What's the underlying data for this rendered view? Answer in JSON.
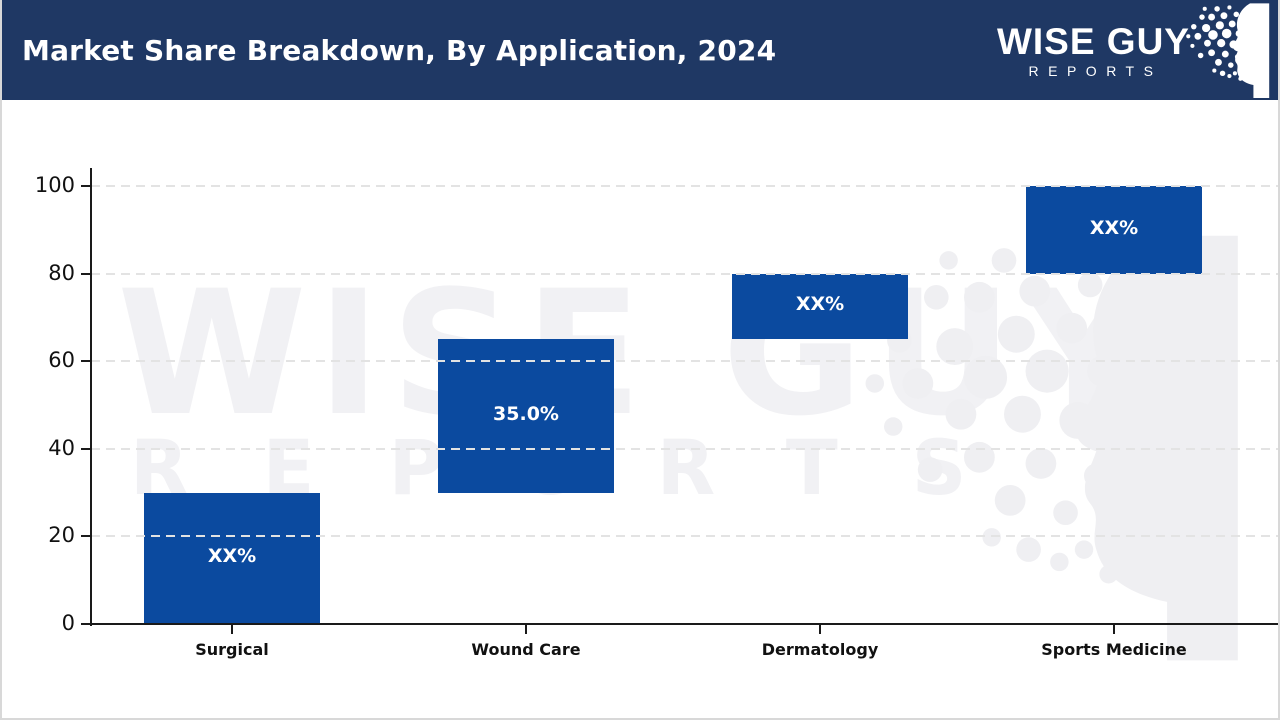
{
  "header": {
    "title": "Market Share Breakdown, By Application, 2024",
    "logo": {
      "line1": "WISE GUY",
      "line2": "REPORTS"
    }
  },
  "watermark": {
    "line1": "WISE GUY",
    "line2": "REPORTS"
  },
  "chart_data": {
    "type": "bar",
    "subtype": "waterfall",
    "title": "Market Share Breakdown, By Application, 2024",
    "categories": [
      "Surgical",
      "Wound Care",
      "Dermatology",
      "Sports Medicine"
    ],
    "segments": [
      {
        "category": "Surgical",
        "start": 0,
        "end": 30,
        "label": "XX%"
      },
      {
        "category": "Wound Care",
        "start": 30,
        "end": 65,
        "label": "35.0%"
      },
      {
        "category": "Dermatology",
        "start": 65,
        "end": 80,
        "label": "XX%"
      },
      {
        "category": "Sports Medicine",
        "start": 80,
        "end": 100,
        "label": "XX%"
      }
    ],
    "yticks": [
      0,
      20,
      40,
      60,
      80,
      100
    ],
    "ylim": [
      0,
      100
    ],
    "xlabel": "",
    "ylabel": "",
    "grid": "horizontal-dashed",
    "legend": null,
    "bar_color": "#0b4a9f",
    "grid_color": "#e3e3e3",
    "header_color": "#1f3864"
  }
}
